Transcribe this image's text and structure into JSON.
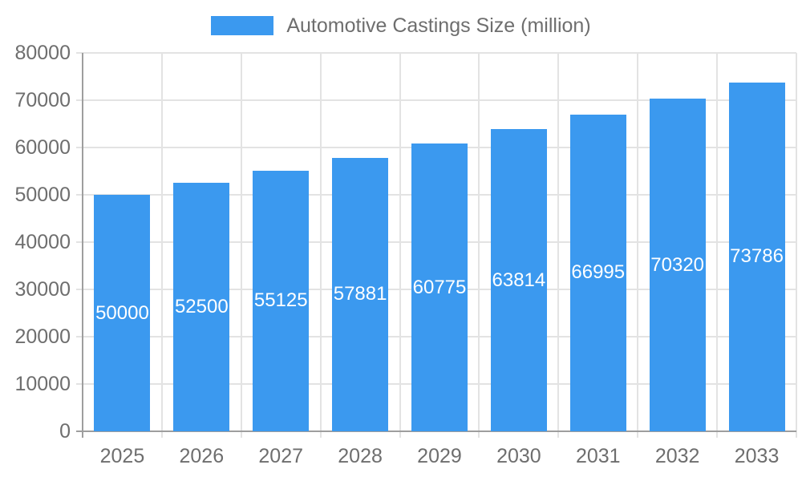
{
  "legend": {
    "label": "Automotive Castings Size (million)"
  },
  "colors": {
    "bar": "#3B99EF",
    "grid": "#e3e3e3",
    "axis": "#9e9e9e",
    "tick_text": "#6e6e6e",
    "value_label": "#ffffff",
    "background": "#ffffff"
  },
  "chart_data": {
    "type": "bar",
    "title": "Automotive Castings Size (million)",
    "categories": [
      "2025",
      "2026",
      "2027",
      "2028",
      "2029",
      "2030",
      "2031",
      "2032",
      "2033"
    ],
    "values": [
      50000,
      52500,
      55125,
      57881,
      60775,
      63814,
      66995,
      70320,
      73786
    ],
    "xlabel": "",
    "ylabel": "",
    "ylim": [
      0,
      80000
    ],
    "ytick_step": 10000,
    "ytick_labels": [
      "0",
      "10000",
      "20000",
      "30000",
      "40000",
      "50000",
      "60000",
      "70000",
      "80000"
    ],
    "grid": true,
    "legend_position": "top-center",
    "value_labels": "inside-center"
  }
}
